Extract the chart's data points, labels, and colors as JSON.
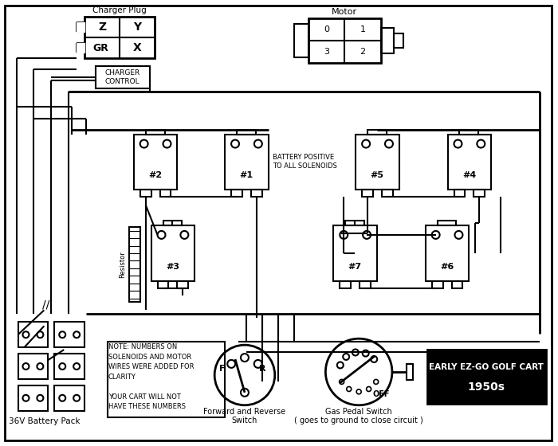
{
  "bg": "white",
  "lc": "black",
  "lw": 1.5,
  "charger_plug_label": "Charger Plug",
  "charger_control_label": "CHARGER\nCONTROL",
  "motor_label": "Motor",
  "battery_positive_label": "BATTERY POSITIVE\nTO ALL SOLENOIDS",
  "battery_pack_label": "36V Battery Pack",
  "fwd_rev_label": "Forward and Reverse\nSwitch",
  "gas_pedal_label": "Gas Pedal Switch\n( goes to ground to close circuit )",
  "off_label": "OFF",
  "resistor_label": "Resistor",
  "note_text": "NOTE: NUMBERS ON\nSOLENOIDS AND MOTOR\nWIRES WERE ADDED FOR\nCLARITY\n\nYOUR CART WILL NOT\nHAVE THESE NUMBERS",
  "title_line1": "EARLY EZ-GO GOLF CART",
  "title_line2": "1950s",
  "f_label": "F",
  "r_label": "R"
}
